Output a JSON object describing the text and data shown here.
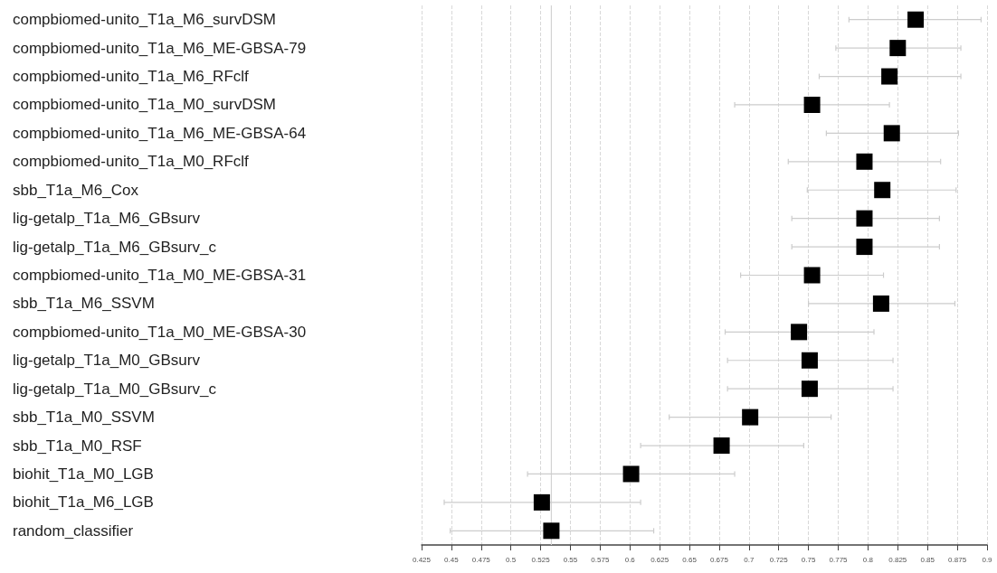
{
  "chart_data": {
    "type": "scatter",
    "orientation": "horizontal",
    "marker": "square",
    "grid": "x",
    "categories": [
      "compbiomed-unito_T1a_M6_survDSM",
      "compbiomed-unito_T1a_M6_ME-GBSA-79",
      "compbiomed-unito_T1a_M6_RFclf",
      "compbiomed-unito_T1a_M0_survDSM",
      "compbiomed-unito_T1a_M6_ME-GBSA-64",
      "compbiomed-unito_T1a_M0_RFclf",
      "sbb_T1a_M6_Cox",
      "lig-getalp_T1a_M6_GBsurv",
      "lig-getalp_T1a_M6_GBsurv_c",
      "compbiomed-unito_T1a_M0_ME-GBSA-31",
      "sbb_T1a_M6_SSVM",
      "compbiomed-unito_T1a_M0_ME-GBSA-30",
      "lig-getalp_T1a_M0_GBsurv",
      "lig-getalp_T1a_M0_GBsurv_c",
      "sbb_T1a_M0_SSVM",
      "sbb_T1a_M0_RSF",
      "biohit_T1a_M0_LGB",
      "biohit_T1a_M6_LGB",
      "random_classifier"
    ],
    "series": [
      {
        "color": "#000000",
        "values": [
          0.84,
          0.825,
          0.818,
          0.753,
          0.82,
          0.797,
          0.812,
          0.797,
          0.797,
          0.753,
          0.811,
          0.742,
          0.751,
          0.751,
          0.701,
          0.677,
          0.601,
          0.526,
          0.534
        ],
        "errors": [
          [
            0.784,
            0.895
          ],
          [
            0.773,
            0.878
          ],
          [
            0.759,
            0.878
          ],
          [
            0.688,
            0.818
          ],
          [
            0.765,
            0.876
          ],
          [
            0.733,
            0.861
          ],
          [
            0.749,
            0.874
          ],
          [
            0.736,
            0.86
          ],
          [
            0.736,
            0.86
          ],
          [
            0.693,
            0.813
          ],
          [
            0.75,
            0.873
          ],
          [
            0.68,
            0.805
          ],
          [
            0.682,
            0.821
          ],
          [
            0.682,
            0.821
          ],
          [
            0.633,
            0.769
          ],
          [
            0.609,
            0.746
          ],
          [
            0.514,
            0.688
          ],
          [
            0.444,
            0.609
          ],
          [
            0.449,
            0.62
          ]
        ]
      }
    ],
    "xlim": [
      0.425,
      0.9
    ],
    "xticks": [
      0.425,
      0.45,
      0.475,
      0.5,
      0.525,
      0.55,
      0.575,
      0.6,
      0.625,
      0.65,
      0.675,
      0.7,
      0.725,
      0.75,
      0.775,
      0.8,
      0.825,
      0.85,
      0.875,
      0.9
    ],
    "ref_lines": [
      {
        "axis": "x",
        "value": 0.534,
        "color": "#d3d3d3",
        "line_style": "solid"
      }
    ]
  }
}
